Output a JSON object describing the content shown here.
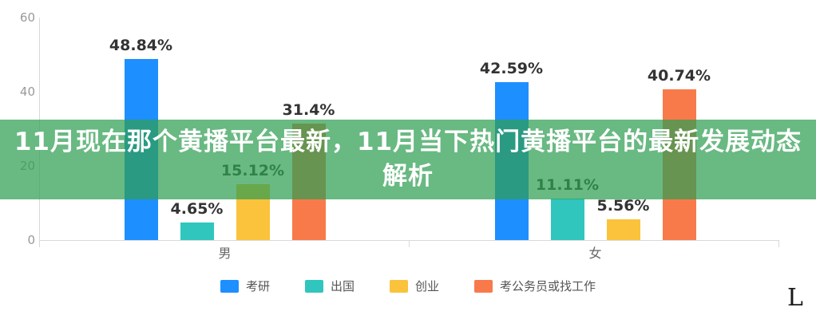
{
  "overlay": {
    "line1": "11月现在那个黄播平台最新，11月当下热门黄播平台的最新发展动态",
    "line2": "解析",
    "band_color": "#2F9E52",
    "band_opacity": 0.72,
    "text_color": "#FFFFFF"
  },
  "chart_data": {
    "type": "bar",
    "categories": [
      "男",
      "女"
    ],
    "series": [
      {
        "name": "考研",
        "color": "#1E8FFF",
        "values": [
          48.84,
          42.59
        ],
        "labels": [
          "48.84%",
          "42.59%"
        ]
      },
      {
        "name": "出国",
        "color": "#30C6BE",
        "values": [
          4.65,
          11.11
        ],
        "labels": [
          "4.65%",
          "11.11%"
        ]
      },
      {
        "name": "创业",
        "color": "#FBC33C",
        "values": [
          15.12,
          5.56
        ],
        "labels": [
          "15.12%",
          "5.56%"
        ]
      },
      {
        "name": "考公务员或找工作",
        "color": "#F87A4B",
        "values": [
          31.4,
          40.74
        ],
        "labels": [
          "31.4%",
          "40.74%"
        ]
      }
    ],
    "yticks": [
      0,
      20,
      40,
      60
    ],
    "ylim": [
      0,
      60
    ],
    "grid": false,
    "legend_position": "bottom",
    "axis_color": "#D9D9D9",
    "tick_label_color": "#999999",
    "category_label_color": "#666666",
    "value_label_color": "#333333",
    "legend_label_color": "#555555"
  },
  "corner_mark": "L"
}
